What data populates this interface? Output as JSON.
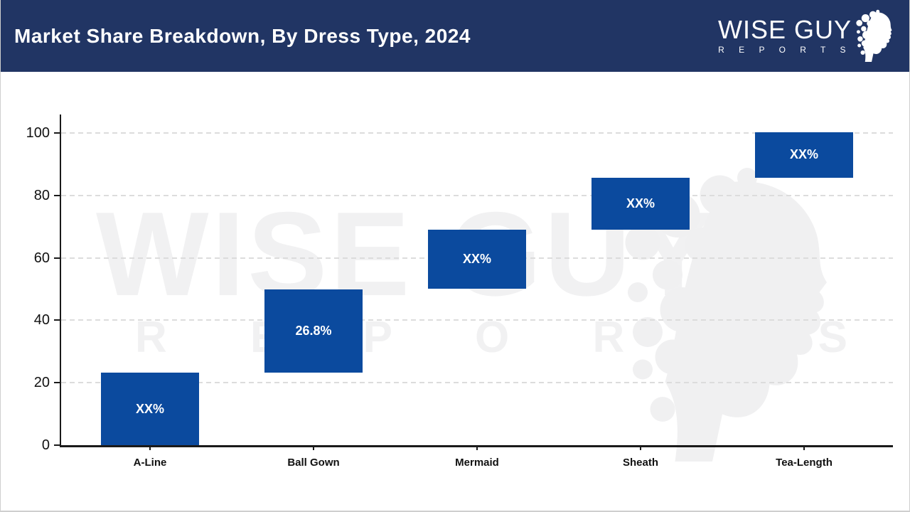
{
  "header": {
    "title": "Market Share Breakdown, By Dress Type, 2024",
    "logo": {
      "wordmark": "WISE GUY",
      "subtext": "R E P O R T S"
    }
  },
  "watermark": {
    "wordmark": "WISE GUY",
    "subtext": "R E P O R T S"
  },
  "colors": {
    "header_bg": "#213564",
    "bar": "#0b4a9e",
    "bar_label": "#ffffff",
    "gridline": "#dcdcdc",
    "axis": "#1a1a1a",
    "watermark": "#f1f1f2"
  },
  "chart_data": {
    "type": "bar",
    "subtype": "waterfall",
    "title": "Market Share Breakdown, By Dress Type, 2024",
    "categories": [
      "A-Line",
      "Ball Gown",
      "Mermaid",
      "Sheath",
      "Tea-Length"
    ],
    "segments": [
      {
        "category": "A-Line",
        "start": 0,
        "end": 23.2,
        "value": 23.2,
        "label": "XX%"
      },
      {
        "category": "Ball Gown",
        "start": 23.2,
        "end": 50.0,
        "value": 26.8,
        "label": "26.8%"
      },
      {
        "category": "Mermaid",
        "start": 50.0,
        "end": 69.0,
        "value": 19.0,
        "label": "XX%"
      },
      {
        "category": "Sheath",
        "start": 69.0,
        "end": 85.6,
        "value": 16.6,
        "label": "XX%"
      },
      {
        "category": "Tea-Length",
        "start": 85.6,
        "end": 100.3,
        "value": 14.7,
        "label": "XX%"
      }
    ],
    "xlabel": "",
    "ylabel": "",
    "ylim": [
      0,
      105
    ],
    "yticks": [
      0,
      20,
      40,
      60,
      80,
      100
    ],
    "grid": "horizontal-dashed",
    "legend": "none",
    "bar_color": "#0b4a9e",
    "label_color": "#ffffff"
  }
}
